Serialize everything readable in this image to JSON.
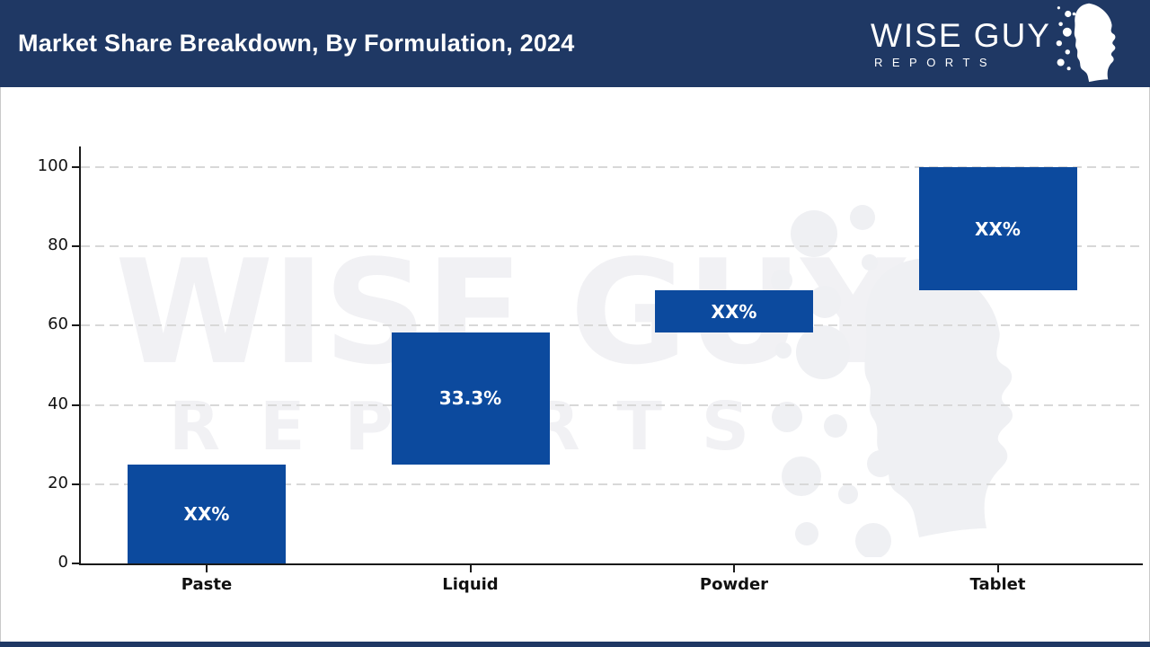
{
  "header": {
    "title": "Market Share Breakdown, By Formulation, 2024",
    "background_color": "#1f3864",
    "logo": {
      "line1": "WISE GUY",
      "line2": "REPORTS"
    }
  },
  "watermark": {
    "line1": "WISE GUY",
    "line2": "REPORTS"
  },
  "footer": {
    "strip_color": "#1f3864"
  },
  "chart_data": {
    "type": "bar",
    "subtype": "floating-segment-waterfall",
    "title": "Market Share Breakdown, By Formulation, 2024",
    "categories": [
      "Paste",
      "Liquid",
      "Powder",
      "Tablet"
    ],
    "segments": [
      {
        "category": "Paste",
        "start": 0,
        "end": 25,
        "label": "XX%"
      },
      {
        "category": "Liquid",
        "start": 25,
        "end": 58.3,
        "label": "33.3%"
      },
      {
        "category": "Powder",
        "start": 58.3,
        "end": 68.9,
        "label": "XX%"
      },
      {
        "category": "Tablet",
        "start": 68.9,
        "end": 100,
        "label": "XX%"
      }
    ],
    "y_ticks": [
      0,
      20,
      40,
      60,
      80,
      100
    ],
    "ylim": [
      0,
      105
    ],
    "xlabel": "",
    "ylabel": "",
    "grid": "horizontal-dashed",
    "bar_color": "#0c4a9e",
    "bar_label_color": "#ffffff",
    "gridline_color": "#d8d8d8",
    "axis_color": "#1a1a1a"
  }
}
